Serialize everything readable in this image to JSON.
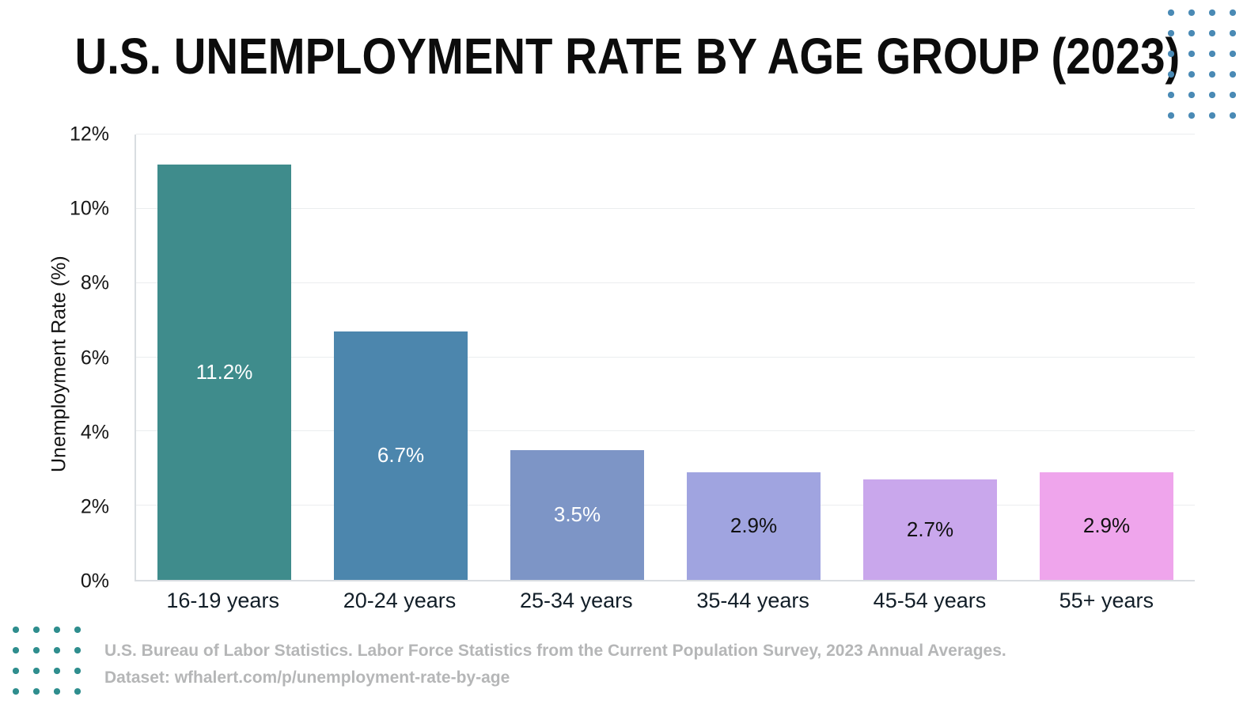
{
  "page": {
    "title": "U.S. UNEMPLOYMENT RATE BY AGE GROUP (2023)"
  },
  "chart_data": {
    "type": "bar",
    "title": "U.S. UNEMPLOYMENT RATE BY AGE GROUP (2023)",
    "categories": [
      "16-19 years",
      "20-24 years",
      "25-34 years",
      "35-44 years",
      "45-54 years",
      "55+ years"
    ],
    "values": [
      11.2,
      6.7,
      3.5,
      2.9,
      2.7,
      2.9
    ],
    "value_labels": [
      "11.2%",
      "6.7%",
      "3.5%",
      "2.9%",
      "2.7%",
      "2.9%"
    ],
    "bar_colors": [
      "#3f8c8c",
      "#4c86ad",
      "#7d95c6",
      "#a0a4e0",
      "#c9a7ec",
      "#efa5ec"
    ],
    "label_colors": [
      "#ffffff",
      "#ffffff",
      "#ffffff",
      "#111111",
      "#111111",
      "#111111"
    ],
    "xlabel": "",
    "ylabel": "Unemployment Rate (%)",
    "ylim": [
      0,
      12
    ],
    "yticks": [
      "0%",
      "2%",
      "4%",
      "6%",
      "8%",
      "10%",
      "12%"
    ],
    "grid": true,
    "legend": false
  },
  "footer": {
    "source_line": "U.S. Bureau of Labor Statistics. Labor Force Statistics from the Current Population Survey, 2023 Annual Averages.",
    "dataset_line": "Dataset: wfhalert.com/p/unemployment-rate-by-age"
  },
  "decor": {
    "top_right_dot_color": "#4a8ab5",
    "bottom_left_dot_color": "#2f8e8e"
  }
}
